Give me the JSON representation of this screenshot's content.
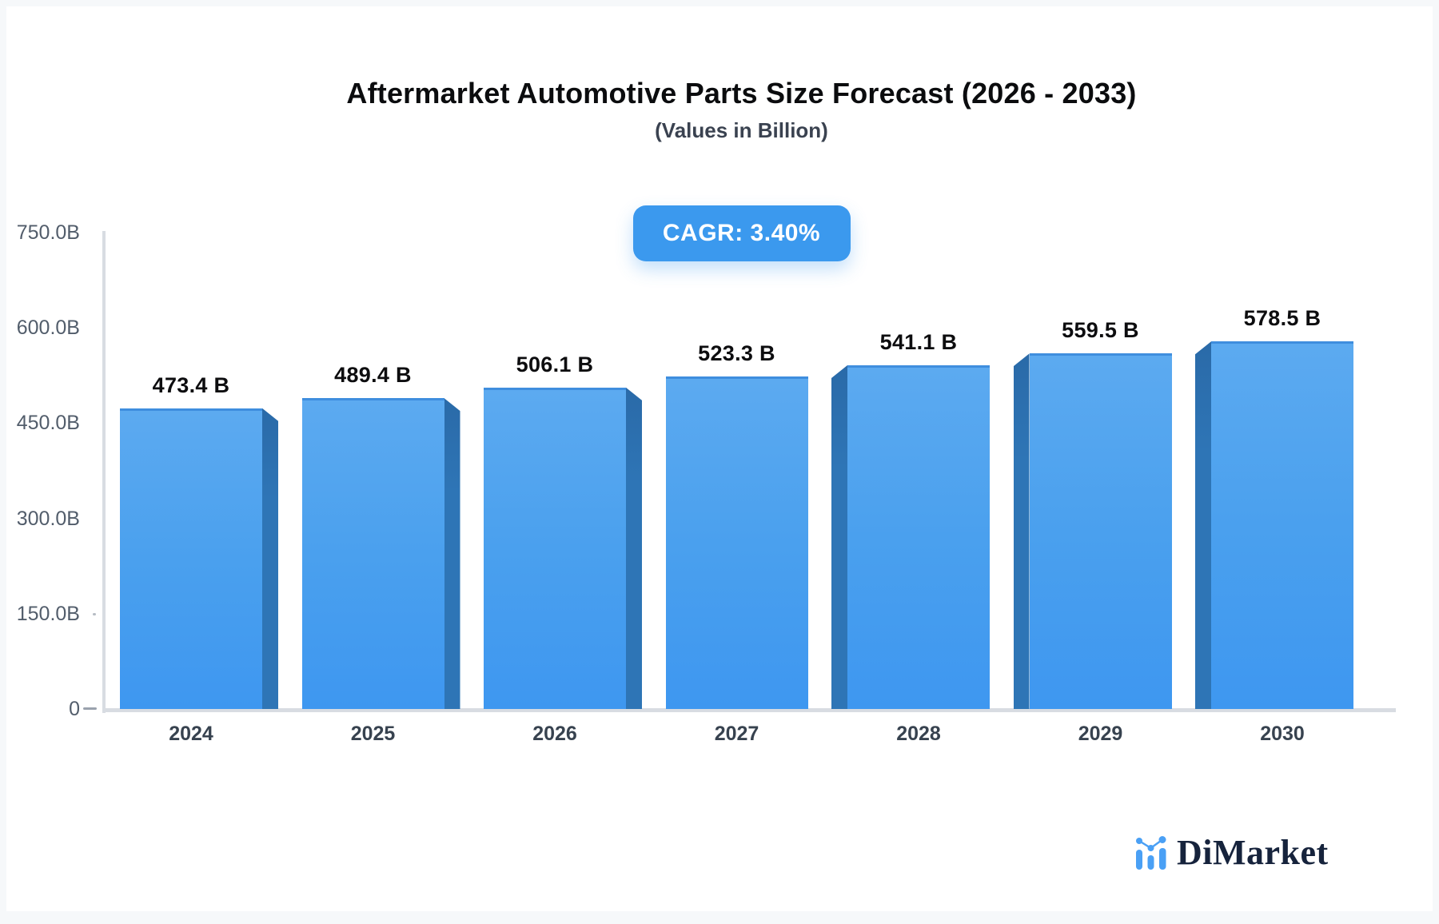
{
  "header": {
    "title": "Aftermarket Automotive Parts Size Forecast (2026 - 2033)",
    "subtitle": "(Values in Billion)",
    "badge": "CAGR: 3.40%"
  },
  "chart_data": {
    "type": "bar",
    "title": "Aftermarket Automotive Parts Size Forecast (2026 - 2033)",
    "subtitle": "(Values in Billion)",
    "annotation": "CAGR: 3.40%",
    "categories": [
      "2024",
      "2025",
      "2026",
      "2027",
      "2028",
      "2029",
      "2030"
    ],
    "values": [
      473.4,
      489.4,
      506.1,
      523.3,
      541.1,
      559.5,
      578.5
    ],
    "bar_labels": [
      "473.4 B",
      "489.4 B",
      "506.1 B",
      "523.3 B",
      "541.1 B",
      "559.5 B",
      "578.5 B"
    ],
    "xlabel": "",
    "ylabel": "",
    "ylim": [
      0,
      750
    ],
    "ytick_values": [
      750,
      600,
      450,
      300,
      150,
      0
    ],
    "ytick_labels": [
      "750.0B",
      "600.0B",
      "450.0B",
      "300.0B",
      "150.0B",
      "0"
    ],
    "grid": false,
    "legend": null,
    "colors": {
      "bar_face_top": "#5caaf0",
      "bar_face_mid": "#4aa0ee",
      "bar_face_bottom": "#3e97f0",
      "bar_top_edge": "#3f8ede",
      "bar_side_top": "#2a6aa8",
      "bar_side": "#2e75b6",
      "badge_bg": "#3b99ee",
      "axis_line": "#d8dce2",
      "tick_mark": "#9aa2ad",
      "ytick_text": "#525d6b",
      "xtick_text": "#37424f",
      "value_text": "#0d0d0f"
    }
  },
  "logo": {
    "text": "DiMarket",
    "icon": "bar-chart-logo-icon",
    "icon_color": "#4aa0f5",
    "text_color": "#16233c"
  }
}
